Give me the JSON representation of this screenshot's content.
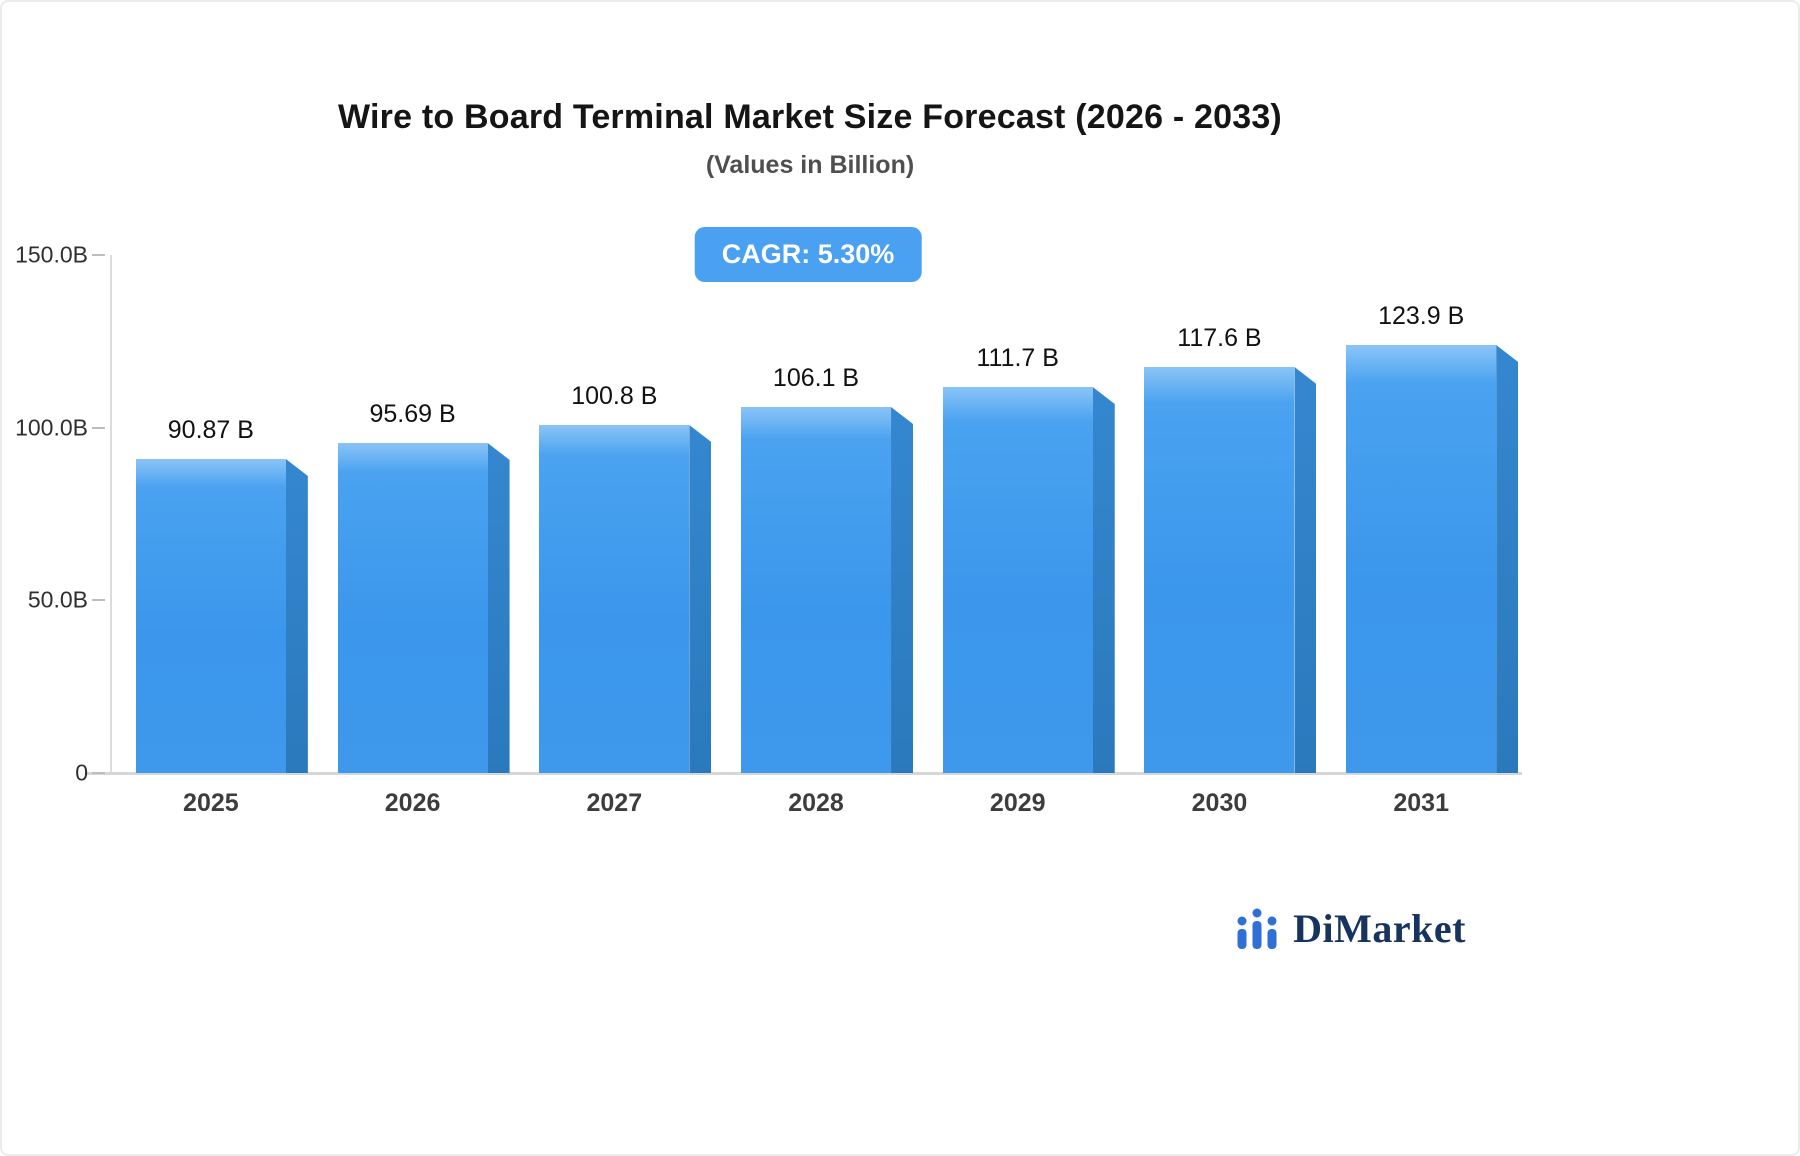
{
  "chart_data": {
    "type": "bar",
    "title": "Wire to Board Terminal Market Size Forecast (2026 - 2033)",
    "subtitle": "(Values in Billion)",
    "badge": "CAGR: 5.30%",
    "categories": [
      "2025",
      "2026",
      "2027",
      "2028",
      "2029",
      "2030",
      "2031"
    ],
    "values": [
      90.87,
      95.69,
      100.8,
      106.1,
      111.7,
      117.6,
      123.9
    ],
    "value_labels": [
      "90.87 B",
      "95.69 B",
      "100.8 B",
      "106.1 B",
      "111.7 B",
      "117.6 B",
      "123.9 B"
    ],
    "xlabel": "",
    "ylabel": "",
    "ylim": [
      0,
      150
    ],
    "yticks": [
      150,
      100,
      50,
      0
    ],
    "ytick_labels": [
      "150.0B",
      "100.0B",
      "50.0B",
      "0"
    ],
    "grid": false,
    "legend": false,
    "colors": {
      "bar_front": "#3b97ec",
      "bar_side": "#2b79bd",
      "badge_background": "#4aa1f1",
      "badge_text": "#ffffff"
    }
  },
  "branding": {
    "logo_text": "DiMarket",
    "logo_icon": "bar-chart-icon",
    "logo_icon_color": "#2f6fd6",
    "logo_text_color": "#17345f"
  }
}
